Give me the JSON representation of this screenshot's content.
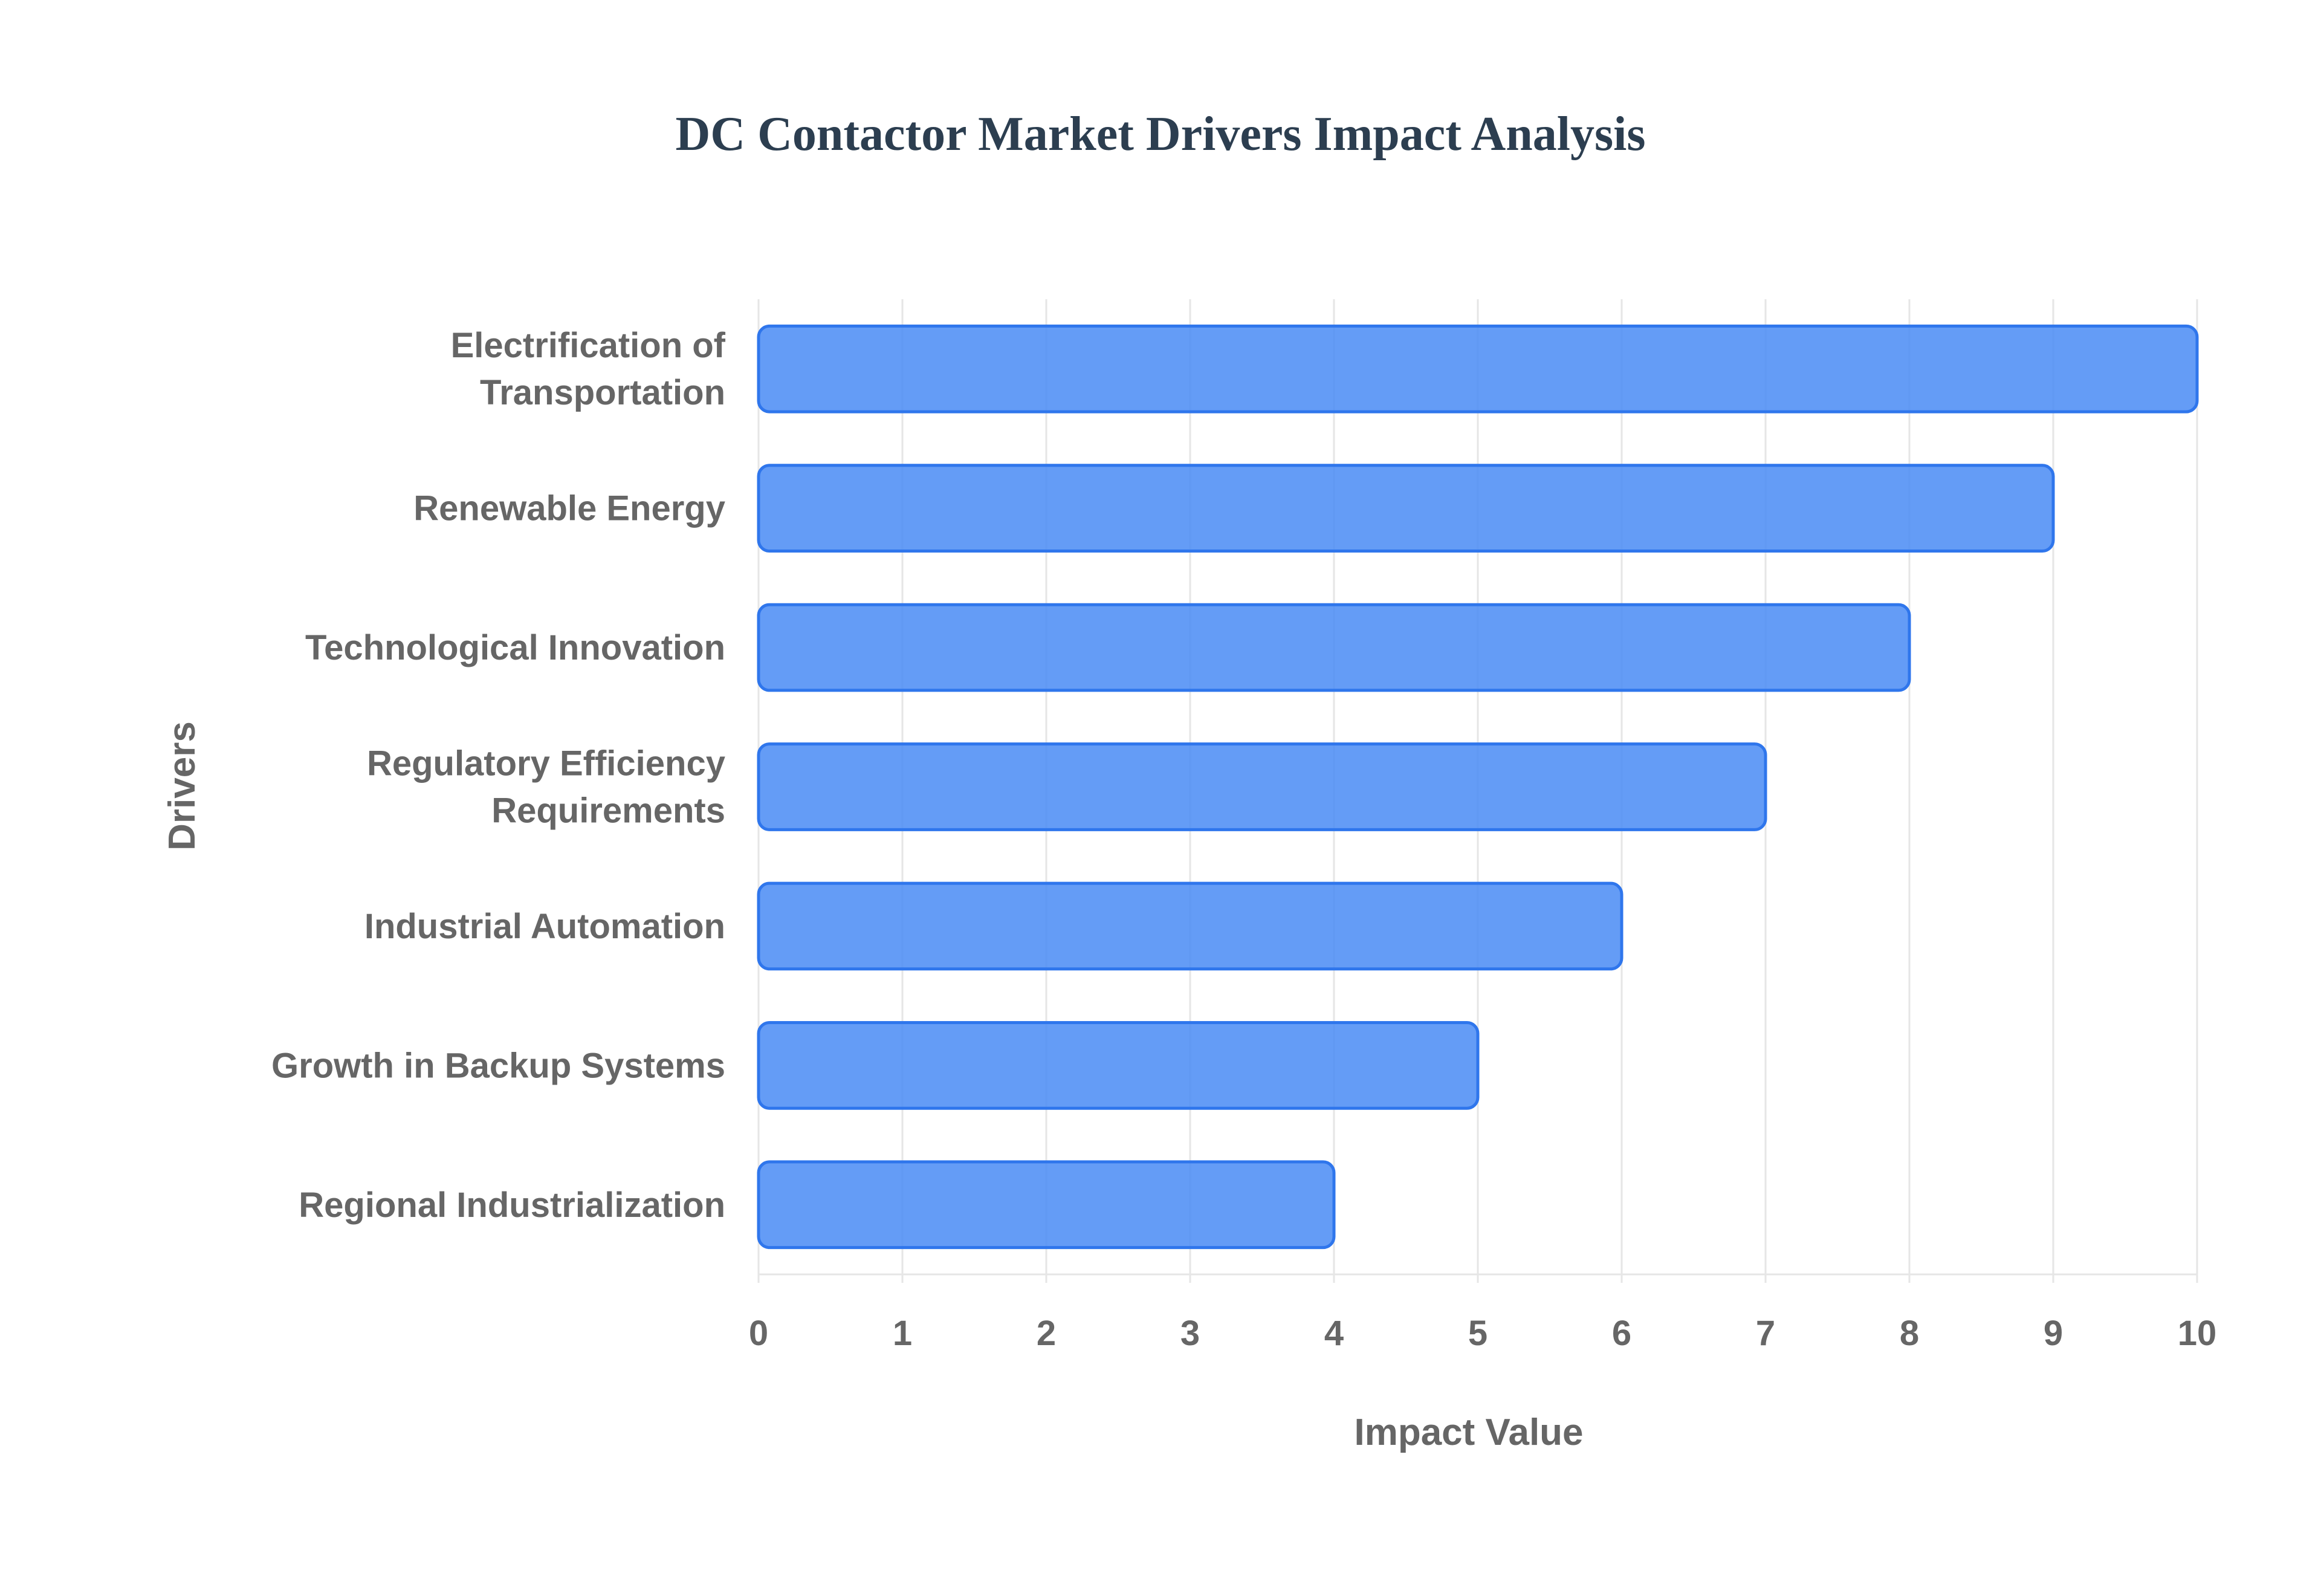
{
  "chart_data": {
    "type": "bar",
    "orientation": "horizontal",
    "title": "DC Contactor Market Drivers Impact Analysis",
    "xlabel": "Impact Value",
    "ylabel": "Drivers",
    "categories": [
      "Electrification of Transportation",
      "Renewable Energy",
      "Technological Innovation",
      "Regulatory Efficiency Requirements",
      "Industrial Automation",
      "Growth in Backup Systems",
      "Regional Industrialization"
    ],
    "category_lines": [
      [
        "Electrification of",
        "Transportation"
      ],
      [
        "Renewable Energy"
      ],
      [
        "Technological Innovation"
      ],
      [
        "Regulatory Efficiency",
        "Requirements"
      ],
      [
        "Industrial Automation"
      ],
      [
        "Growth in Backup Systems"
      ],
      [
        "Regional Industrialization"
      ]
    ],
    "values": [
      10,
      9,
      8,
      7,
      6,
      5,
      4
    ],
    "xlim": [
      0,
      10
    ],
    "xticks": [
      0,
      1,
      2,
      3,
      4,
      5,
      6,
      7,
      8,
      9,
      10
    ],
    "grid": true,
    "legend": "none",
    "colors": {
      "bar_fill": "#4f8ef5",
      "bar_stroke": "#2f76ec",
      "title": "#2c3e50",
      "label": "#666666",
      "grid": "#e6e6e6"
    }
  }
}
